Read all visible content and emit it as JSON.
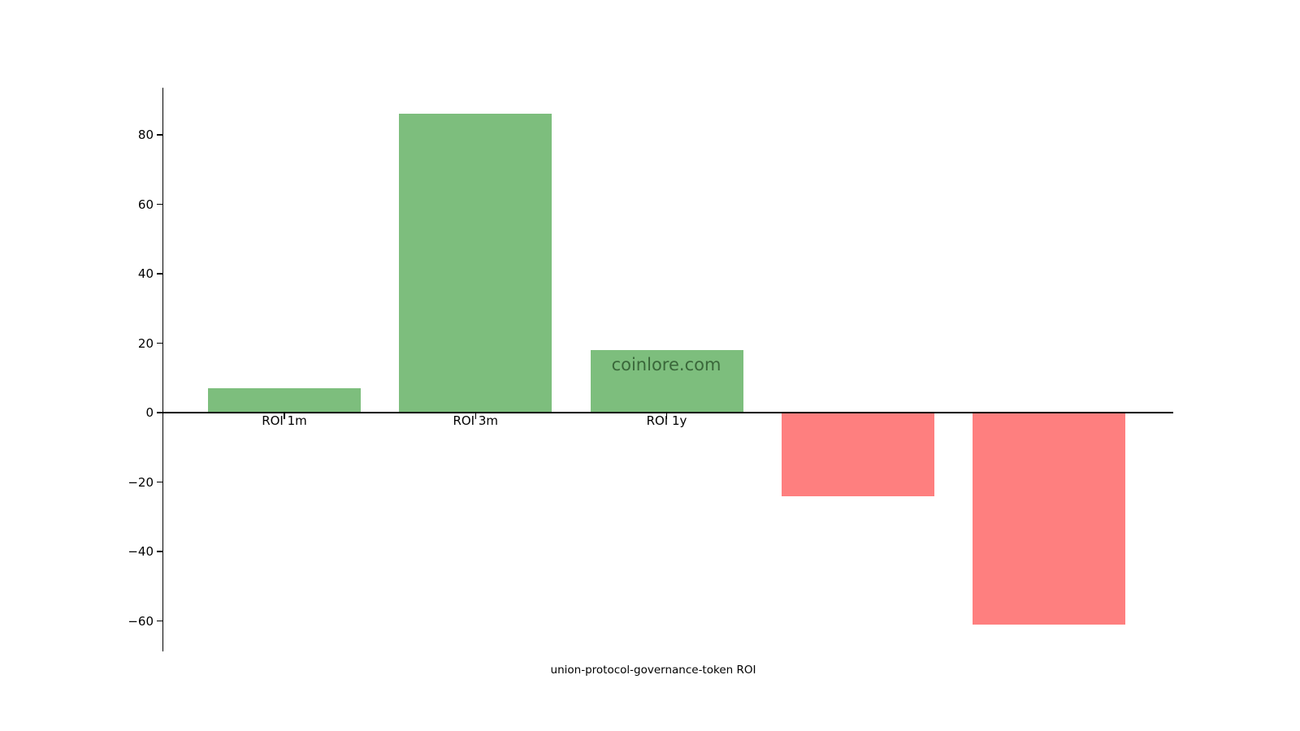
{
  "chart_data": {
    "type": "bar",
    "title": "union-protocol-governance-token ROI",
    "watermark_text": "coinlore.com",
    "categories": [
      "ROI 1m",
      "ROI 3m",
      "ROI 1y",
      "",
      ""
    ],
    "values": [
      7,
      86,
      18,
      -24,
      -61
    ],
    "xlabel": "",
    "ylabel": "",
    "ylim": [
      -69,
      94
    ],
    "y_ticks": [
      {
        "value": 80,
        "label": "80"
      },
      {
        "value": 60,
        "label": "60"
      },
      {
        "value": 40,
        "label": "40"
      },
      {
        "value": 20,
        "label": "20"
      },
      {
        "value": 0,
        "label": "0"
      },
      {
        "value": -20,
        "label": "−20"
      },
      {
        "value": -40,
        "label": "−40"
      },
      {
        "value": -60,
        "label": "−60"
      }
    ],
    "grid": false,
    "legend": "none",
    "colors": {
      "positive_bar": "#7dbe7d",
      "negative_bar": "#fe7f7f",
      "axis": "#000000",
      "tick_label": "#000000",
      "title": "#000000",
      "watermark": "#3a673a",
      "background": "#ffffff"
    }
  }
}
